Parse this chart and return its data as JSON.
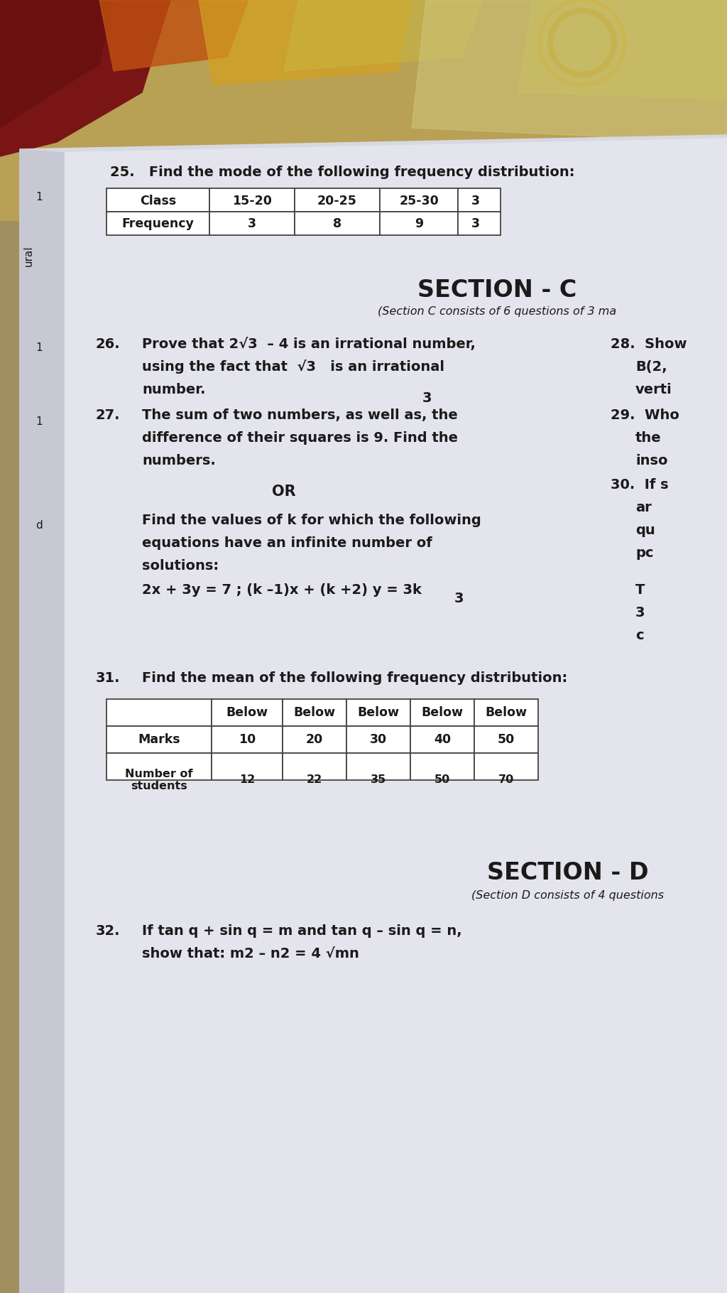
{
  "bg_top_color": "#b8a070",
  "bg_flower_colors": [
    "#8b1a1a",
    "#c0580a",
    "#d4a020",
    "#b8b060",
    "#d0c090"
  ],
  "paper_color": "#dcdce4",
  "paper_inner_color": "#e8e8f0",
  "text_color": "#1a1a1a",
  "title_q25": "25.   Find the mode of the following frequency distribution:",
  "t25_col_headers": [
    "Class",
    "15-20",
    "20-25",
    "25-30"
  ],
  "t25_col_freq": [
    "Frequency",
    "3",
    "8",
    "9"
  ],
  "section_c_title": "SECTION - C",
  "section_c_sub": "(Section C consists of 6 questions of 3 ma",
  "q26_num": "26.",
  "q26a": "Prove that 2√3  – 4 is an irrational number,",
  "q26b": "using the fact that  √3   is an irrational",
  "q26c": "number.",
  "q26_marks": "3",
  "q28_num": "28.",
  "q28a": "Show",
  "q28b": "B(2,",
  "q28c": "verti",
  "q29_num": "29.",
  "q29a": "Who",
  "q29b": "the",
  "q29c": "inso",
  "q27_num": "27.",
  "q27a": "The sum of two numbers, as well as, the",
  "q27b": "difference of their squares is 9. Find the",
  "q27c": "numbers.",
  "or_text": "OR",
  "q30_num": "30.",
  "q30a": "If s",
  "q30b": "ar",
  "q30c": "qu",
  "q30d": "pc",
  "q27_or1": "Find the values of k for which the following",
  "q27_or2": "equations have an infinite number of",
  "q27_or3": "solutions:",
  "q27_or4": "2x + 3y = 7 ; (k –1)x + (k +2) y = 3k",
  "q27_marks": "3",
  "right_T": "T",
  "right_3": "3",
  "right_c": "c",
  "q31_num": "31.",
  "q31a": "Find the mean of the following frequency distribution:",
  "t31_row1": [
    "",
    "Below",
    "Below",
    "Below",
    "Below",
    "Below"
  ],
  "t31_row2": [
    "Marks",
    "10",
    "20",
    "30",
    "40",
    "50"
  ],
  "t31_row3": [
    "Number of\nstudents",
    "12",
    "22",
    "35",
    "50",
    "70"
  ],
  "section_d_title": "SECTION - D",
  "section_d_sub": "(Section D consists of 4 questions",
  "q32_num": "32.",
  "q32a": "If tan q + sin q = m and tan q – sin q = n,",
  "q32b": "show that: m2 – n2 = 4 √mn",
  "margin_num1": "1",
  "margin_num2": "1",
  "margin_num3": "1",
  "margin_num4": "d",
  "margin_word": "ural"
}
